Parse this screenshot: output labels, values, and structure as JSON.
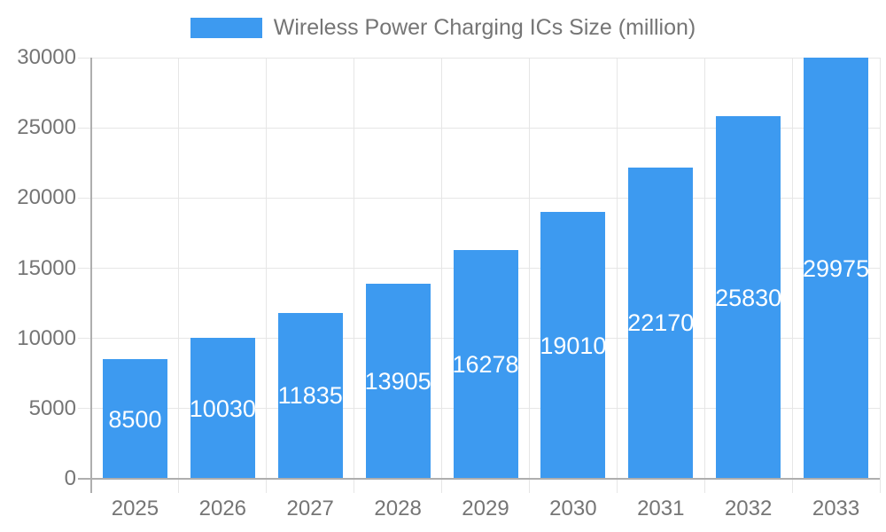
{
  "chart_data": {
    "type": "bar",
    "title": "Wireless Power Charging ICs Size (million)",
    "legend": {
      "position": "top",
      "entries": [
        {
          "label": "Wireless Power Charging ICs Size (million)",
          "color": "#3D9AF0"
        }
      ]
    },
    "categories": [
      "2025",
      "2026",
      "2027",
      "2028",
      "2029",
      "2030",
      "2031",
      "2032",
      "2033"
    ],
    "series": [
      {
        "name": "Wireless Power Charging ICs Size (million)",
        "values": [
          8500,
          10030,
          11835,
          13905,
          16278,
          19010,
          22170,
          25830,
          29975
        ]
      }
    ],
    "value_labels": {
      "visible": true,
      "position": "inside-center"
    },
    "xlabel": "",
    "ylabel": "",
    "ylim": [
      0,
      30000
    ],
    "yticks": [
      0,
      5000,
      10000,
      15000,
      20000,
      25000,
      30000
    ],
    "grid": {
      "horizontal": true,
      "vertical": true
    },
    "colors": {
      "bar": "#3D9AF0",
      "axis_line": "#aeaeae",
      "gridline": "#e6e6e6",
      "axis_text": "#757575",
      "value_text": "#ffffff",
      "background": "#ffffff"
    }
  }
}
